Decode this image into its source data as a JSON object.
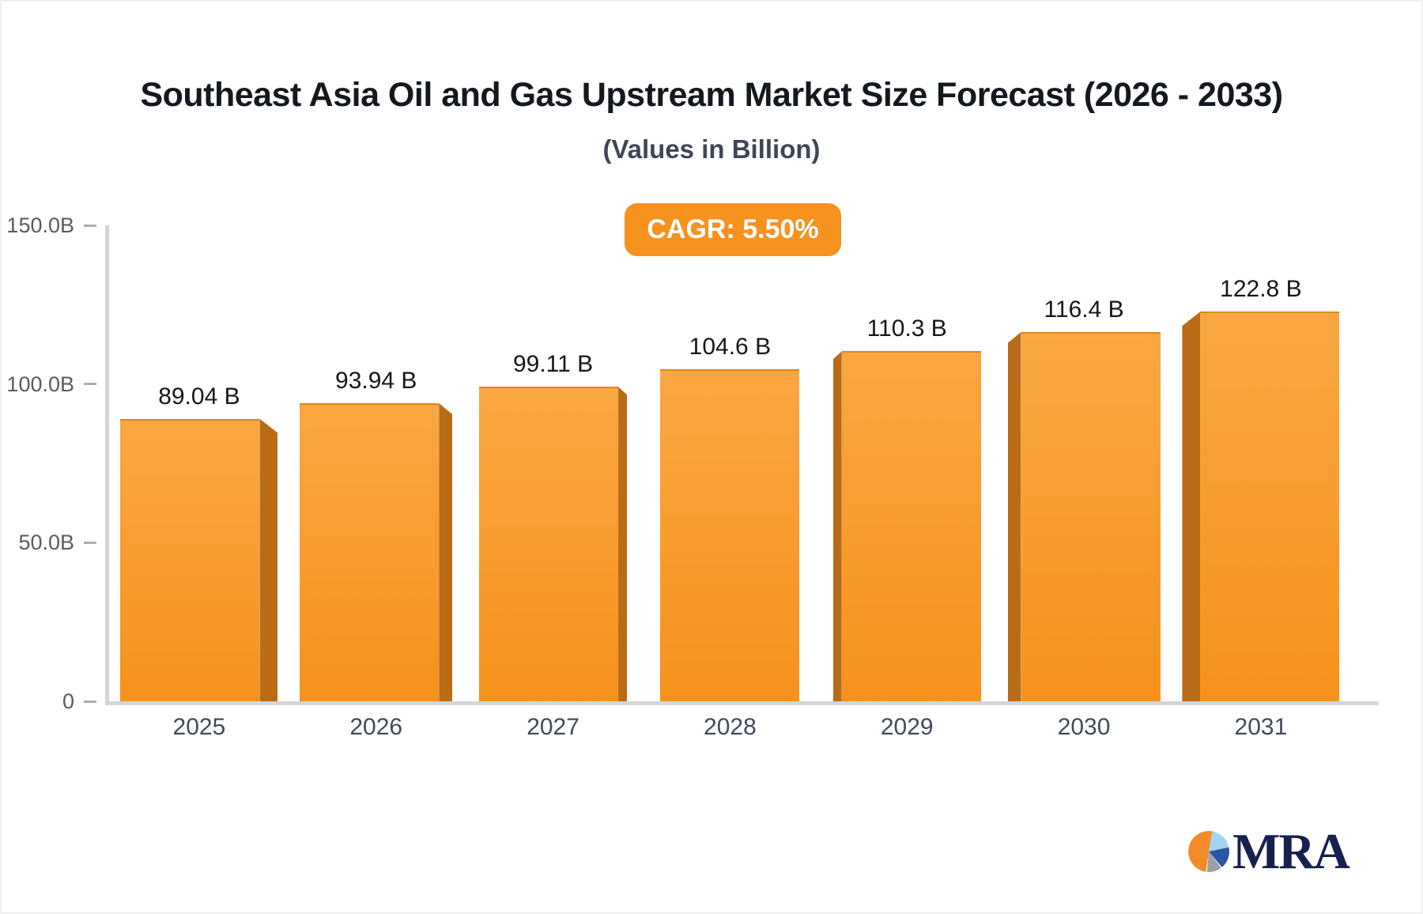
{
  "chart_data": {
    "type": "bar",
    "title": "Southeast Asia Oil and Gas Upstream Market Size Forecast (2026 - 2033)",
    "subtitle": "(Values in Billion)",
    "categories": [
      "2025",
      "2026",
      "2027",
      "2028",
      "2029",
      "2030",
      "2031"
    ],
    "values": [
      89.04,
      93.94,
      99.11,
      104.6,
      110.3,
      116.4,
      122.8
    ],
    "bar_labels": [
      "89.04 B",
      "93.94 B",
      "99.11 B",
      "104.6 B",
      "110.3 B",
      "116.4 B",
      "122.8 B"
    ],
    "ylim": [
      0,
      150
    ],
    "yticks": [
      {
        "label": "150.0B",
        "value": 150
      },
      {
        "label": "100.0B",
        "value": 100
      },
      {
        "label": "50.0B",
        "value": 50
      },
      {
        "label": "0",
        "value": 0
      }
    ],
    "grid": "off",
    "legend": "none",
    "bar_colors": {
      "face_top": "#F9A742",
      "face_bottom": "#F6921C",
      "side": "#B96C15"
    },
    "axis_color": "#D2D5DA"
  },
  "badge": {
    "text": "CAGR: 5.50%",
    "bg": "#F6921E",
    "text_color": "#FFFFFF"
  },
  "logo": {
    "text": "MRA",
    "text_color": "#17214E",
    "pie_colors": {
      "orange": "#F28C28",
      "light_blue": "#A6D3F3",
      "dark_blue": "#2B55A2",
      "gray": "#9B9FA8"
    }
  }
}
